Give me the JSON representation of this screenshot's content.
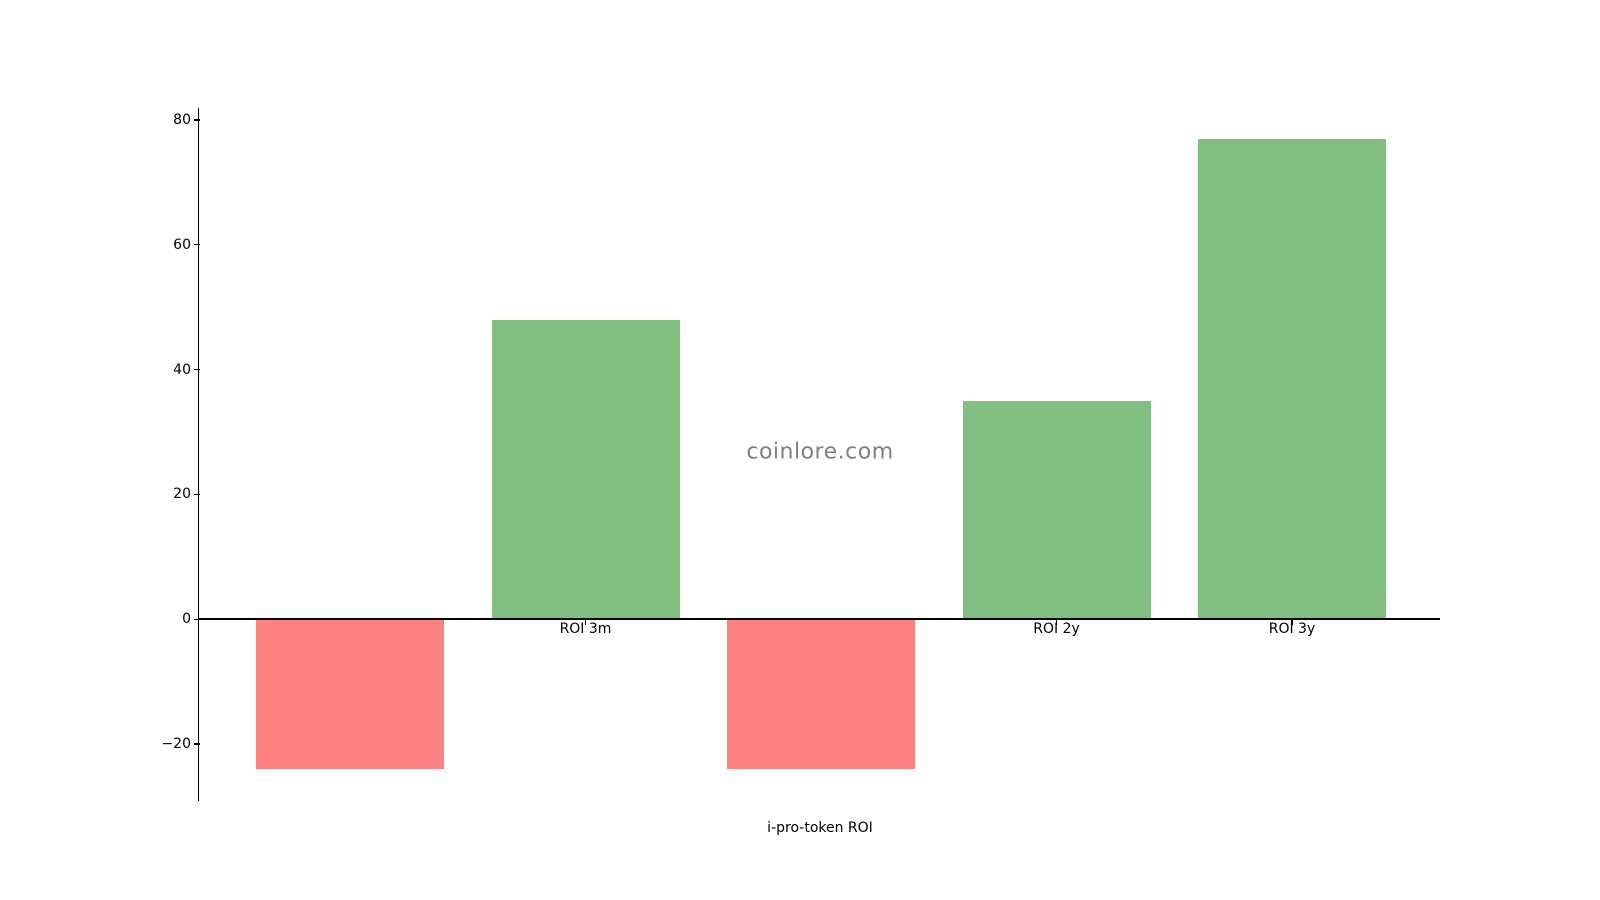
{
  "watermark": {
    "text": "coinlore.com",
    "color": "#7f7f7f"
  },
  "chart_data": {
    "type": "bar",
    "title": "",
    "xlabel": "i-pro-token ROI",
    "ylabel": "",
    "categories": [
      "",
      "ROI 3m",
      "",
      "ROI 2y",
      "ROI 3y"
    ],
    "values": [
      -24,
      48,
      -24,
      35,
      77
    ],
    "bar_value_signs": [
      "negative",
      "positive",
      "negative",
      "positive",
      "positive"
    ],
    "positive_color": "#80bf80",
    "negative_color": "#ff8080",
    "axis_color": "#000000",
    "text_color": "#000000",
    "y_ticks": [
      {
        "value": 80,
        "label": "80"
      },
      {
        "value": 60,
        "label": "60"
      },
      {
        "value": 40,
        "label": "40"
      },
      {
        "value": 20,
        "label": "20"
      },
      {
        "value": 0,
        "label": "0"
      },
      {
        "value": -20,
        "label": "−20"
      }
    ],
    "ylim": [
      -29.1,
      81.9
    ],
    "grid": false,
    "legend": "none",
    "baseline": 0
  }
}
